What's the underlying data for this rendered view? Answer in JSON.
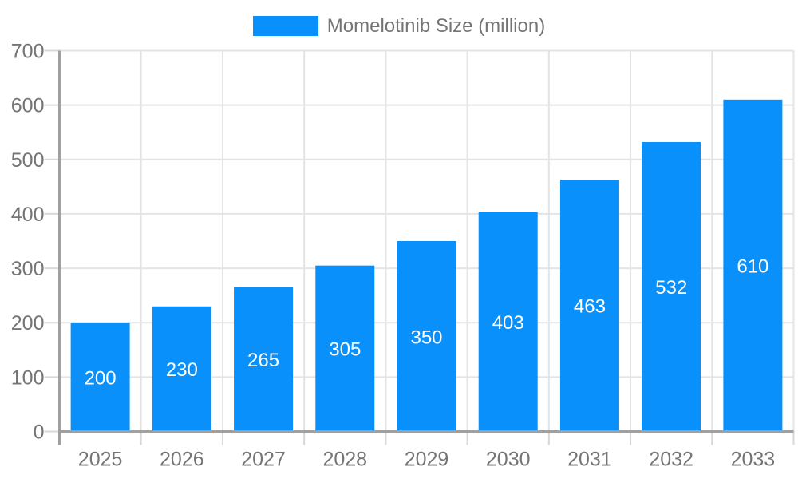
{
  "chart_data": {
    "type": "bar",
    "title": "Momelotinib Size (million)",
    "legend": {
      "label": "Momelotinib Size (million)",
      "position": "top-center"
    },
    "categories": [
      "2025",
      "2026",
      "2027",
      "2028",
      "2029",
      "2030",
      "2031",
      "2032",
      "2033"
    ],
    "series": [
      {
        "name": "Momelotinib Size (million)",
        "values": [
          200,
          230,
          265,
          305,
          350,
          403,
          463,
          532,
          610
        ]
      }
    ],
    "bar_value_labels": [
      "200",
      "230",
      "265",
      "305",
      "350",
      "403",
      "463",
      "532",
      "610"
    ],
    "xlabel": "",
    "ylabel": "",
    "ylim": [
      0,
      700
    ],
    "ytick_step": 100,
    "yticks": [
      0,
      100,
      200,
      300,
      400,
      500,
      600,
      700
    ],
    "grid": true,
    "legend_visible": true,
    "colors": {
      "bar": "#0a90fa",
      "grid": "#e4e4e4",
      "tick": "#d8d8d8",
      "axis": "#a0a0a0",
      "axis_label": "#757575",
      "legend_label": "#757575",
      "bar_label": "#ffffff",
      "background": "#ffffff"
    }
  }
}
